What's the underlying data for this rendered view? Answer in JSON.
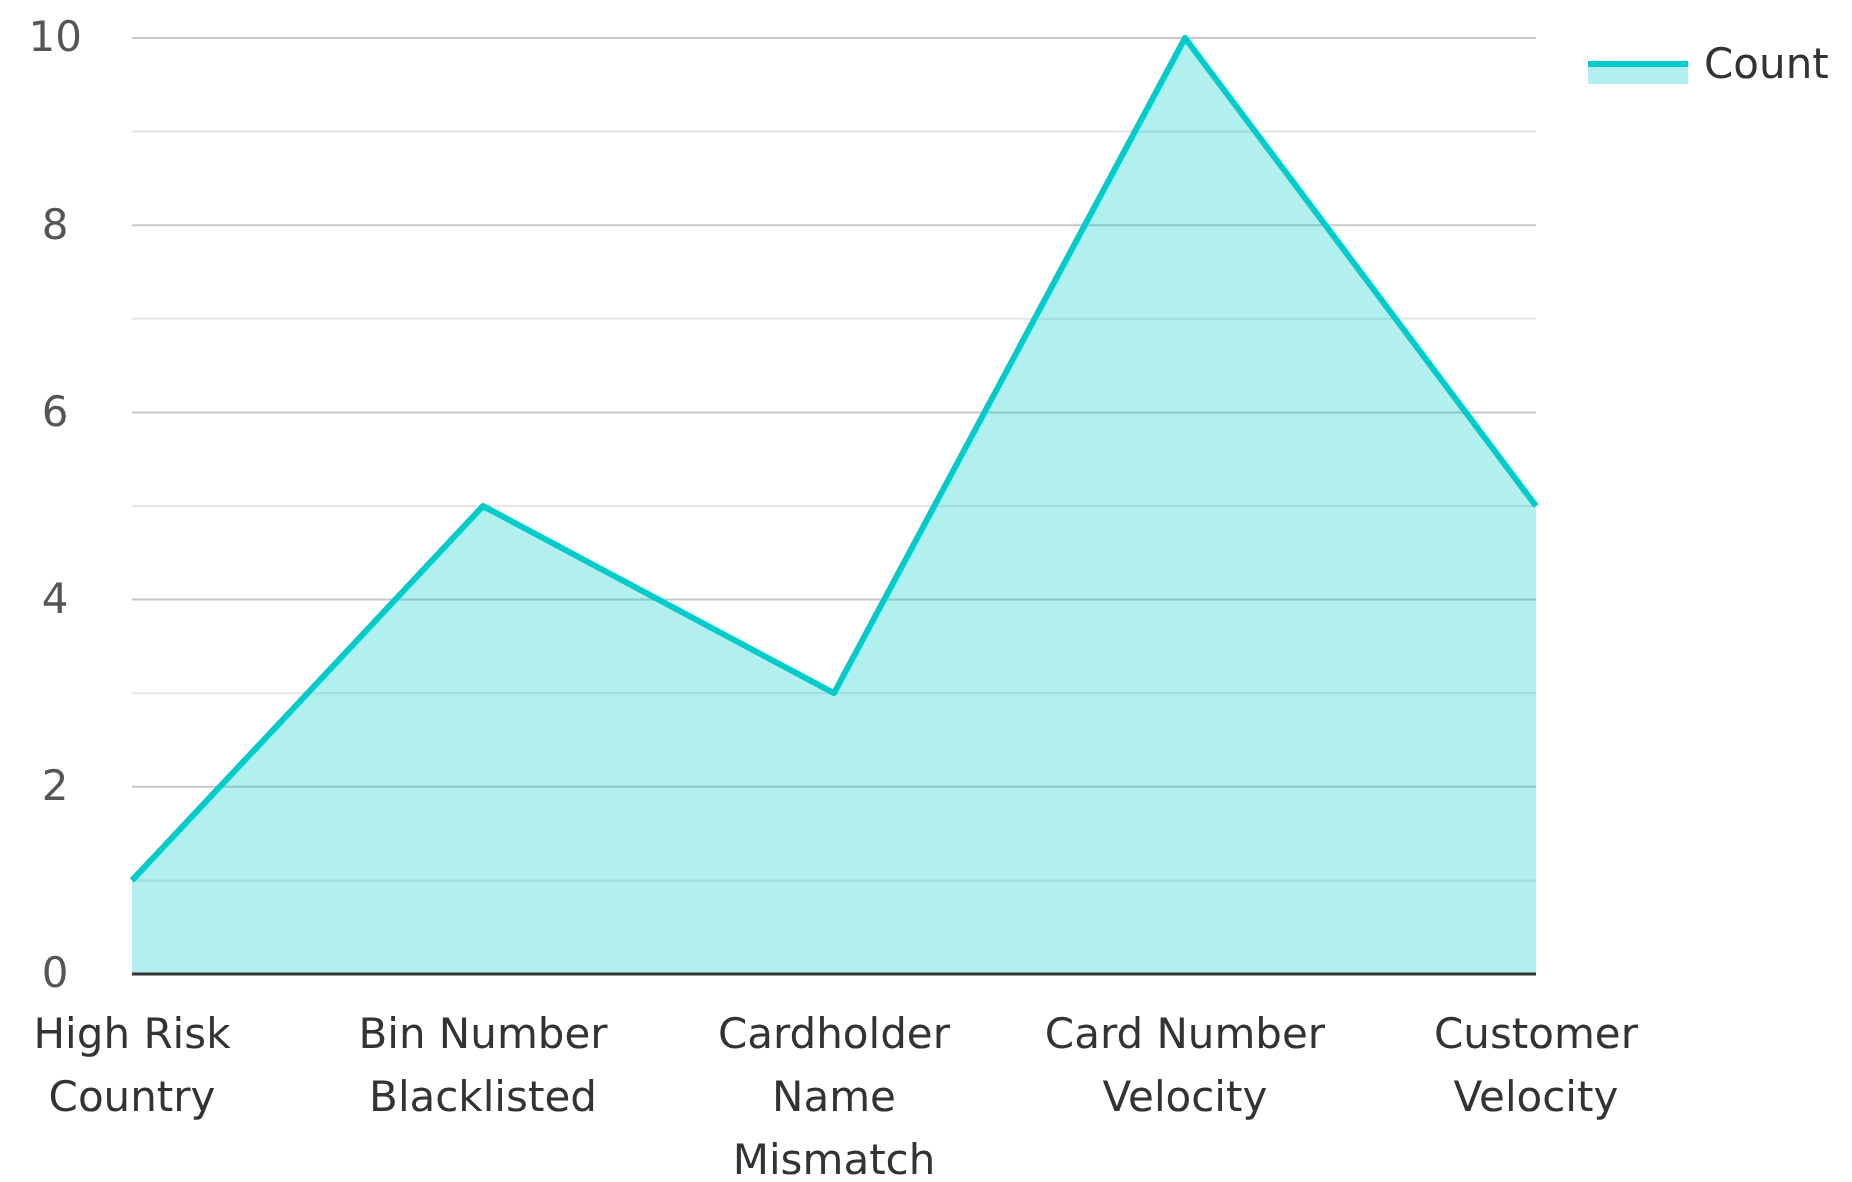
{
  "chart_data": {
    "type": "area",
    "categories": [
      "High Risk Country",
      "Bin Number Blacklisted",
      "Cardholder Name Mismatch",
      "Card Number Velocity",
      "Customer Velocity"
    ],
    "series": [
      {
        "name": "Count",
        "color": "#00cccc",
        "values": [
          1,
          5,
          3,
          10,
          5
        ]
      }
    ],
    "ylim": [
      0,
      10
    ],
    "yticks": [
      0,
      {
        "value": 1,
        "label": null
      },
      2,
      {
        "value": 3,
        "label": null
      },
      4,
      {
        "value": 5,
        "label": null
      },
      6,
      {
        "value": 7,
        "label": null
      },
      8,
      {
        "value": 9,
        "label": null
      },
      10
    ],
    "grid": "y",
    "legend": "top right"
  }
}
